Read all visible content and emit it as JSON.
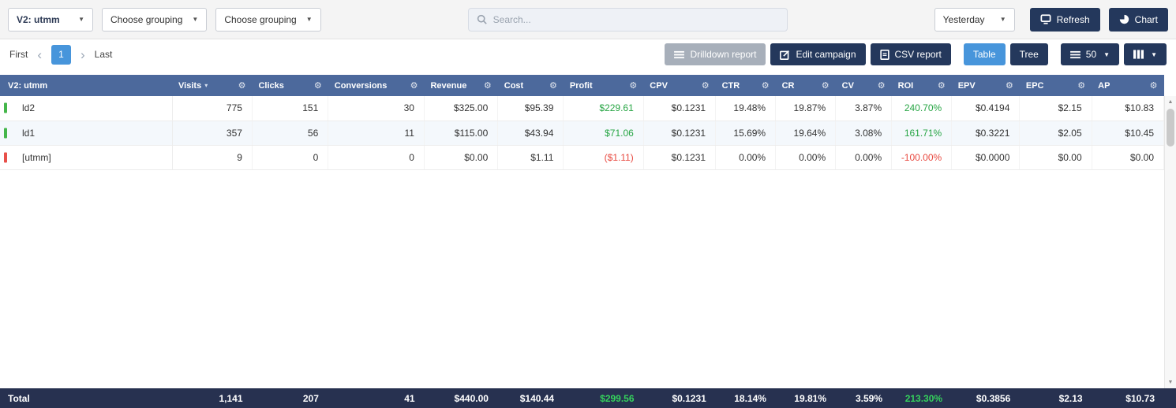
{
  "toolbar": {
    "campaign_dropdown": "V2: utmm",
    "grouping_dropdown_1": "Choose grouping",
    "grouping_dropdown_2": "Choose grouping",
    "search_placeholder": "Search...",
    "date_dropdown": "Yesterday",
    "refresh_button": "Refresh",
    "chart_button": "Chart"
  },
  "pagination": {
    "first_label": "First",
    "current_page": "1",
    "last_label": "Last"
  },
  "actions": {
    "drilldown_button": "Drilldown report",
    "edit_campaign_button": "Edit campaign",
    "csv_button": "CSV report",
    "table_toggle": "Table",
    "tree_toggle": "Tree",
    "rows_per_page": "50"
  },
  "colors": {
    "positive_green": "#27a544",
    "footer_green": "#35d15c",
    "negative_red": "#e8483f",
    "header_blue": "#4c699c",
    "footer_navy": "#273150",
    "button_navy": "#24385c",
    "accent_blue": "#4795db"
  },
  "table": {
    "name_header": "V2: utmm",
    "columns": [
      "Visits",
      "Clicks",
      "Conversions",
      "Revenue",
      "Cost",
      "Profit",
      "CPV",
      "CTR",
      "CR",
      "CV",
      "ROI",
      "EPV",
      "EPC",
      "AP"
    ],
    "profit_column_index": 5,
    "roi_column_index": 10,
    "rows": [
      {
        "name": "ld2",
        "status": "green",
        "values": [
          "775",
          "151",
          "30",
          "$325.00",
          "$95.39",
          "$229.61",
          "$0.1231",
          "19.48%",
          "19.87%",
          "3.87%",
          "240.70%",
          "$0.4194",
          "$2.15",
          "$10.83"
        ]
      },
      {
        "name": "ld1",
        "status": "green",
        "values": [
          "357",
          "56",
          "11",
          "$115.00",
          "$43.94",
          "$71.06",
          "$0.1231",
          "15.69%",
          "19.64%",
          "3.08%",
          "161.71%",
          "$0.3221",
          "$2.05",
          "$10.45"
        ]
      },
      {
        "name": "[utmm]",
        "status": "red",
        "values": [
          "9",
          "0",
          "0",
          "$0.00",
          "$1.11",
          "($1.11)",
          "$0.1231",
          "0.00%",
          "0.00%",
          "0.00%",
          "-100.00%",
          "$0.0000",
          "$0.00",
          "$0.00"
        ]
      }
    ],
    "total": {
      "label": "Total",
      "values": [
        "1,141",
        "207",
        "41",
        "$440.00",
        "$140.44",
        "$299.56",
        "$0.1231",
        "18.14%",
        "19.81%",
        "3.59%",
        "213.30%",
        "$0.3856",
        "$2.13",
        "$10.73"
      ]
    }
  }
}
